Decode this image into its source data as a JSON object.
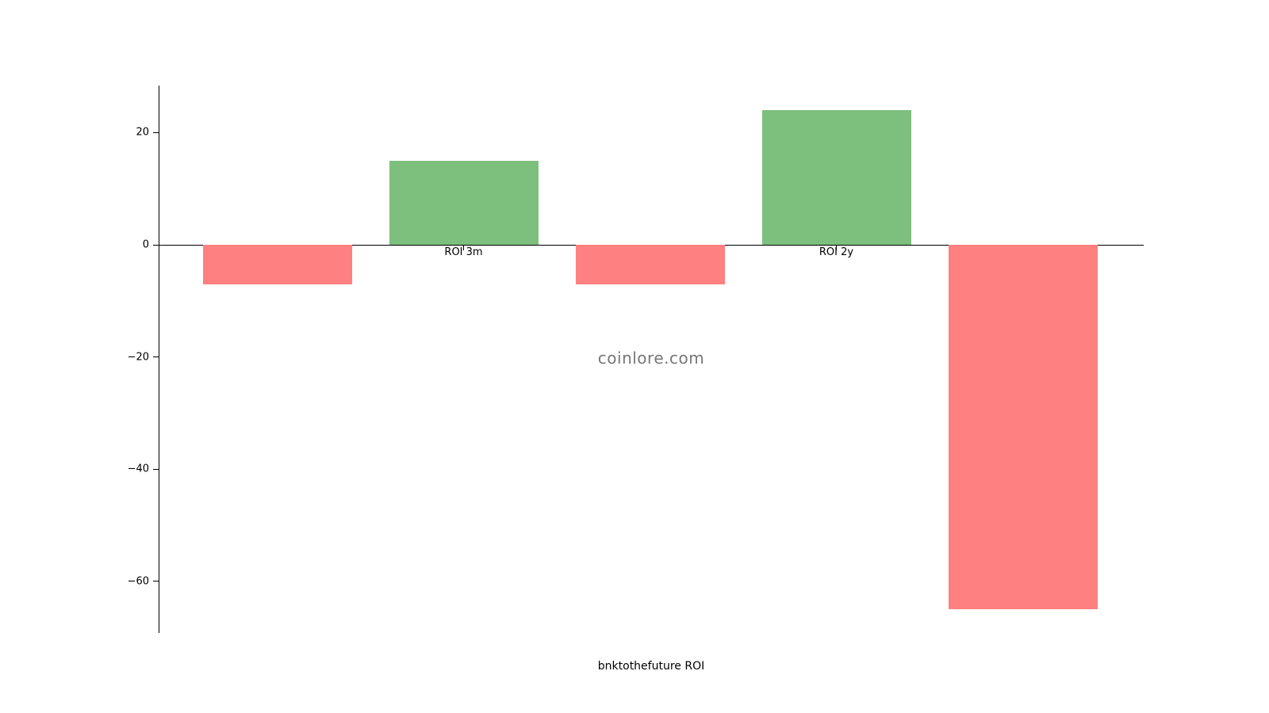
{
  "chart_data": {
    "type": "bar",
    "xlabel": "bnktothefuture ROI",
    "ylabel": "",
    "watermark": "coinlore.com",
    "y_ticks": [
      20,
      0,
      -20,
      -40,
      -60
    ],
    "ylim": [
      -69.5,
      28.5
    ],
    "grid": false,
    "legend": false,
    "bars": [
      {
        "label": "",
        "value": -7
      },
      {
        "label": "ROI 3m",
        "value": 15
      },
      {
        "label": "",
        "value": -7
      },
      {
        "label": "ROI 2y",
        "value": 24
      },
      {
        "label": "",
        "value": -65
      }
    ],
    "colors": {
      "positive": "#7dbf7d",
      "negative": "#ff8080",
      "axis": "#000000",
      "watermark": "#777777"
    }
  }
}
